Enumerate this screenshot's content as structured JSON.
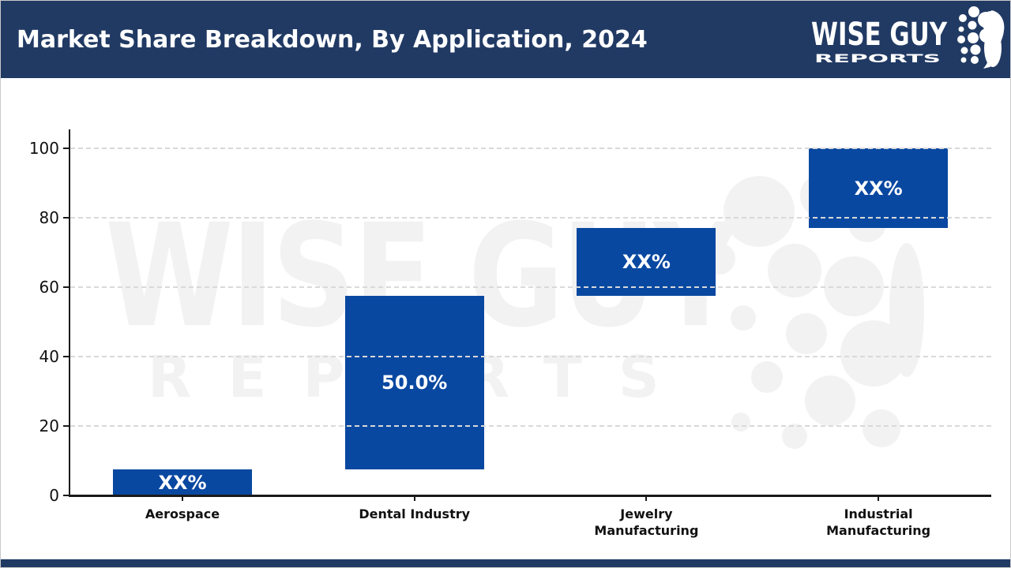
{
  "header": {
    "title": "Market Share Breakdown, By Application, 2024",
    "logo": {
      "line1": "WISE GUY",
      "line2": "REPORTS"
    }
  },
  "watermark": {
    "line1": "WISE GUY",
    "line2": "REPORTS"
  },
  "colors": {
    "header_bg": "#213A64",
    "footer_bg": "#213A64",
    "bar": "#0948A1",
    "bar_label": "#ffffff",
    "grid": "#d9d9d9",
    "axis": "#1a1a1a",
    "tick_text": "#111111",
    "watermark": "#f2f2f2",
    "title_text": "#ffffff"
  },
  "chart_data": {
    "type": "bar",
    "subtype": "waterfall-breakdown",
    "title": "Market Share Breakdown, By Application, 2024",
    "categories": [
      "Aerospace",
      "Dental Industry",
      "Jewelry\nManufacturing",
      "Industrial\nManufacturing"
    ],
    "segments": [
      {
        "category": "Aerospace",
        "start": 0,
        "end": 7.5,
        "label": "XX%"
      },
      {
        "category": "Dental Industry",
        "start": 7.5,
        "end": 57.5,
        "label": "50.0%"
      },
      {
        "category": "Jewelry Manufacturing",
        "start": 57.5,
        "end": 77,
        "label": "XX%"
      },
      {
        "category": "Industrial Manufacturing",
        "start": 77,
        "end": 100,
        "label": "XX%"
      }
    ],
    "xlabel": "",
    "ylabel": "",
    "yticks": [
      0,
      20,
      40,
      60,
      80,
      100
    ],
    "ylim": [
      0,
      105
    ],
    "grid": "dashed-horizontal-over-bars",
    "legend": "none"
  }
}
